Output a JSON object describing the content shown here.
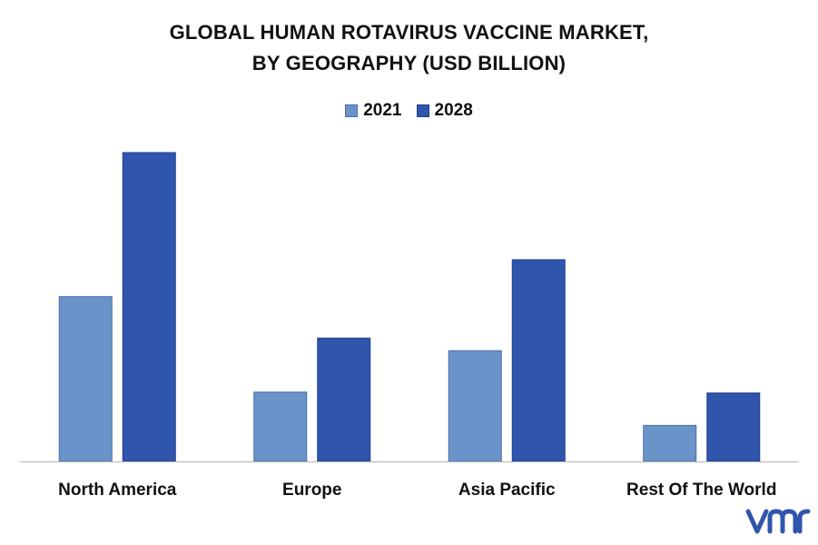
{
  "chart_data": {
    "type": "bar",
    "title": "GLOBAL HUMAN ROTAVIRUS VACCINE MARKET,",
    "subtitle": "BY GEOGRAPHY (USD BILLION)",
    "categories": [
      "North America",
      "Europe",
      "Asia Pacific",
      "Rest Of The World"
    ],
    "series": [
      {
        "name": "2021",
        "color": "#6a93c9",
        "values": [
          1.83,
          0.77,
          1.23,
          0.4
        ]
      },
      {
        "name": "2028",
        "color": "#2f55ad",
        "values": [
          3.43,
          1.37,
          2.24,
          0.76
        ]
      }
    ],
    "ylim": [
      0,
      3.45
    ],
    "grid": false,
    "legend_position": "top-center",
    "xlabel": "",
    "ylabel": ""
  },
  "logo": {
    "name": "vmr-logo",
    "color": "#2f55ad"
  }
}
